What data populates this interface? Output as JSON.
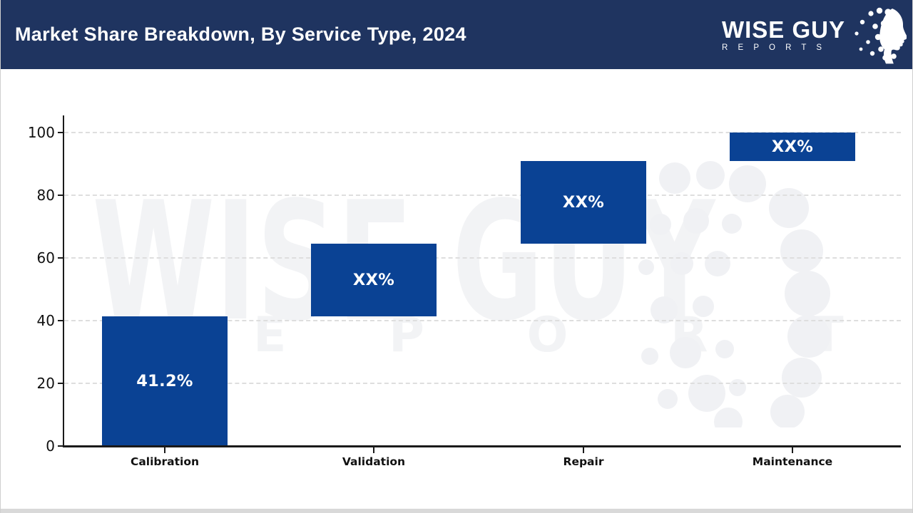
{
  "header": {
    "title": "Market Share Breakdown, By Service Type, 2024",
    "logo": {
      "line1": "WISE GUY",
      "line2": "R E P O R T S"
    }
  },
  "watermark": {
    "line1": "WISE GUY",
    "line2": "R E P O R T S"
  },
  "chart_data": {
    "type": "bar",
    "subtype": "waterfall",
    "title": "Market Share Breakdown, By Service Type, 2024",
    "categories": [
      "Calibration",
      "Validation",
      "Repair",
      "Maintenance"
    ],
    "segments": [
      {
        "category": "Calibration",
        "start": 0,
        "end": 41.2,
        "label": "41.2%"
      },
      {
        "category": "Validation",
        "start": 41.2,
        "end": 64.5,
        "label": "XX%"
      },
      {
        "category": "Repair",
        "start": 64.5,
        "end": 91,
        "label": "XX%"
      },
      {
        "category": "Maintenance",
        "start": 91,
        "end": 100,
        "label": "XX%"
      }
    ],
    "yticks": [
      0,
      20,
      40,
      60,
      80,
      100
    ],
    "ylim": [
      0,
      105
    ],
    "grid": "horizontal-dashed",
    "legend": "none",
    "bar_color": "#0a4294",
    "bar_label_color": "#ffffff"
  },
  "colors": {
    "header_bg": "#1f3460",
    "bar": "#0a4294",
    "grid": "#dedede",
    "axis": "#1a1a1a",
    "watermark": "#f2f3f5",
    "bottom_strip": "#d9d9d9"
  }
}
